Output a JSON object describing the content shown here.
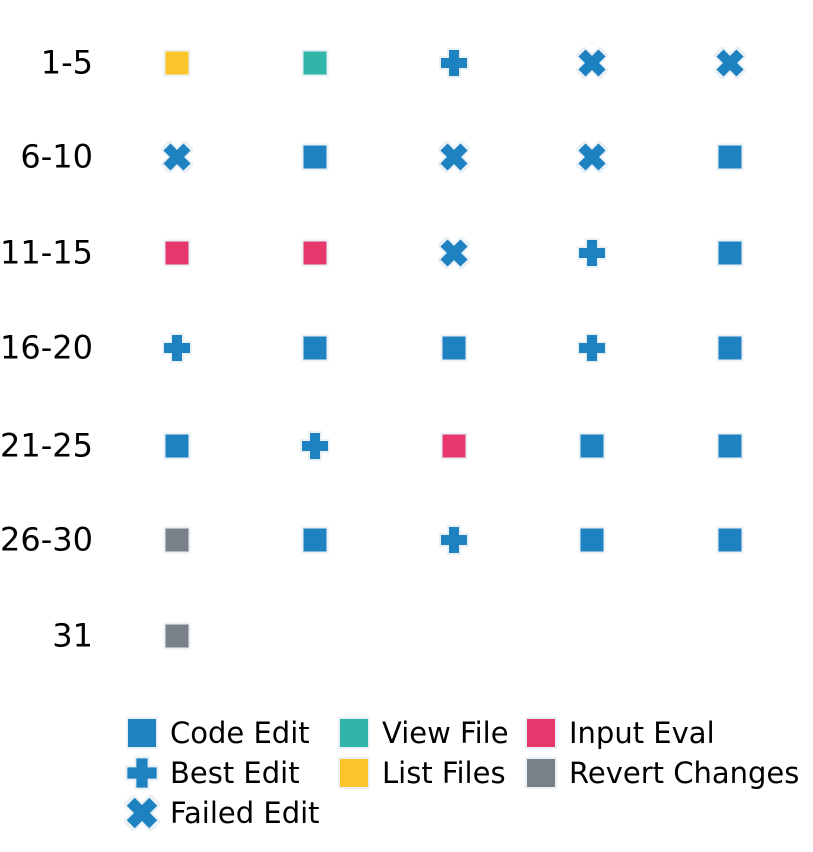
{
  "figure": {
    "background": "#ffffff",
    "text_color": "#000000",
    "marker_edge_color": "#e9f1f6"
  },
  "chart_data": {
    "type": "scatter",
    "title": "",
    "xlabel": "",
    "ylabel": "",
    "description": "Categorical grid of agent actions per step. Each row is a range of 5 steps (last row is step 31 alone); each column is one step within that range. Marker shape/color encodes the action type.",
    "grid": {
      "columns_per_row": 5,
      "legend_position": "bottom"
    },
    "rows": [
      {
        "label": "1-5",
        "cells": [
          "list_files",
          "view_file",
          "best_edit",
          "failed_edit",
          "failed_edit"
        ]
      },
      {
        "label": "6-10",
        "cells": [
          "failed_edit",
          "code_edit",
          "failed_edit",
          "failed_edit",
          "code_edit"
        ]
      },
      {
        "label": "11-15",
        "cells": [
          "input_eval",
          "input_eval",
          "failed_edit",
          "best_edit",
          "code_edit"
        ]
      },
      {
        "label": "16-20",
        "cells": [
          "best_edit",
          "code_edit",
          "code_edit",
          "best_edit",
          "code_edit"
        ]
      },
      {
        "label": "21-25",
        "cells": [
          "code_edit",
          "best_edit",
          "input_eval",
          "code_edit",
          "code_edit"
        ]
      },
      {
        "label": "26-30",
        "cells": [
          "revert_changes",
          "code_edit",
          "best_edit",
          "code_edit",
          "code_edit"
        ]
      },
      {
        "label": "31",
        "cells": [
          "revert_changes"
        ]
      }
    ],
    "marker_types": {
      "code_edit": {
        "label": "Code Edit",
        "shape": "square",
        "color": "#1f82c0"
      },
      "best_edit": {
        "label": "Best Edit",
        "shape": "plus",
        "color": "#1f82c0"
      },
      "failed_edit": {
        "label": "Failed Edit",
        "shape": "x",
        "color": "#1f82c0"
      },
      "view_file": {
        "label": "View File",
        "shape": "square",
        "color": "#30b5a8"
      },
      "list_files": {
        "label": "List Files",
        "shape": "square",
        "color": "#fcc32a"
      },
      "input_eval": {
        "label": "Input Eval",
        "shape": "square",
        "color": "#e7386e"
      },
      "revert_changes": {
        "label": "Revert Changes",
        "shape": "square",
        "color": "#7a8088"
      }
    },
    "legend": {
      "columns": [
        [
          "code_edit",
          "best_edit",
          "failed_edit"
        ],
        [
          "view_file",
          "list_files"
        ],
        [
          "input_eval",
          "revert_changes"
        ]
      ]
    }
  }
}
